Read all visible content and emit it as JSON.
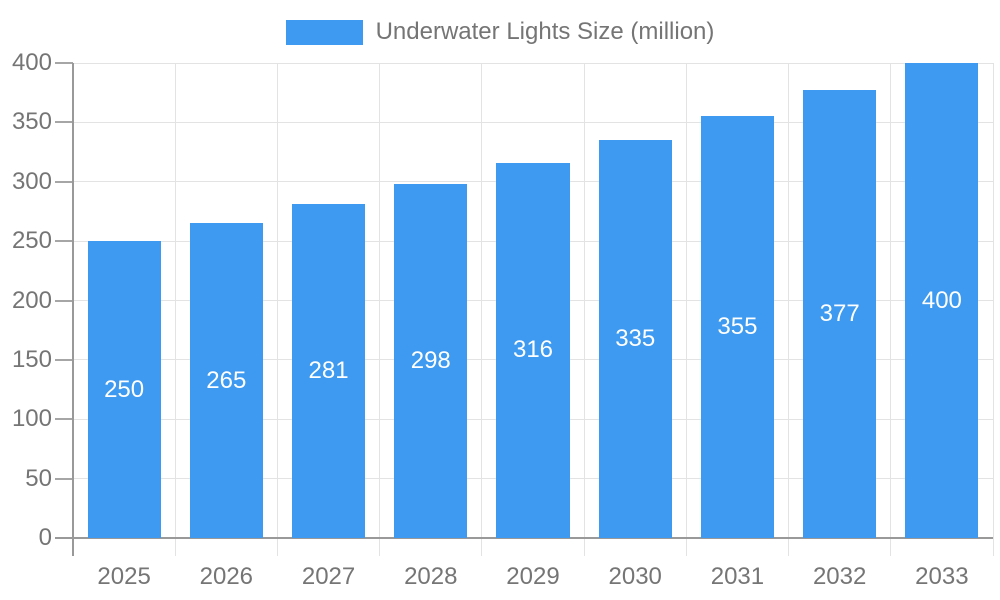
{
  "chart_data": {
    "type": "bar",
    "title": "",
    "legend": {
      "label": "Underwater Lights Size (million)",
      "position": "top-center"
    },
    "categories": [
      "2025",
      "2026",
      "2027",
      "2028",
      "2029",
      "2030",
      "2031",
      "2032",
      "2033"
    ],
    "series": [
      {
        "name": "Underwater Lights Size (million)",
        "values": [
          250,
          265,
          281,
          298,
          316,
          335,
          355,
          377,
          400
        ]
      }
    ],
    "xlabel": "",
    "ylabel": "",
    "ylim": [
      0,
      400
    ],
    "y_ticks": [
      0,
      50,
      100,
      150,
      200,
      250,
      300,
      350,
      400
    ],
    "grid": true,
    "bar_labels_visible": true,
    "colors": {
      "bar": "#3d9af0",
      "grid": "#e3e3e3",
      "axis": "#999999",
      "tick": "#a6a6a6",
      "text": "#757575",
      "bar_label": "#ffffff",
      "background": "#ffffff"
    }
  }
}
